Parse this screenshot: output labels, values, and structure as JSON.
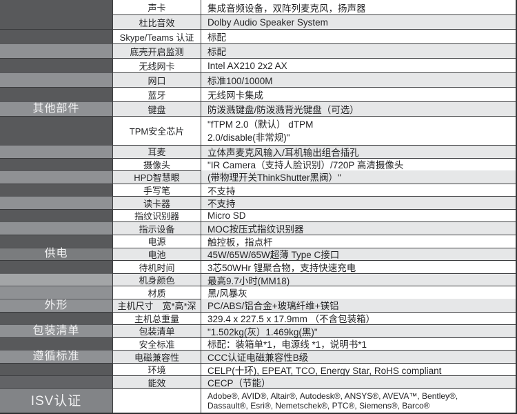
{
  "palette": {
    "left_dark": "#58595b",
    "left_medium": "#8f9194",
    "stripe_gray": "#e6e7e8",
    "stripe_white": "#ffffff",
    "border": "#3c3d3f",
    "category_text": "#f2f2f3",
    "cell_text": "#232325",
    "band_overrides": {
      "17": "#7a7c7e",
      "19": "#a3a5a7",
      "20": "#8f9194",
      "27": "#626366",
      "28": "#828487"
    }
  },
  "categories": [
    {
      "label": "其他部件",
      "row_index": 7,
      "large": false
    },
    {
      "label": "供电",
      "row_index": 17,
      "large": false
    },
    {
      "label": "外形",
      "row_index": 21,
      "large": false
    },
    {
      "label": "包装清单",
      "row_index": 23,
      "large": false
    },
    {
      "label": "遵循标准",
      "row_index": 25,
      "large": false
    },
    {
      "label": "ISV认证",
      "row_index": 28,
      "large": true
    }
  ],
  "rows": [
    {
      "label": "声卡",
      "value": "集成音频设备，双阵列麦克风，扬声器"
    },
    {
      "label": "杜比音效",
      "value": "Dolby Audio Speaker System"
    },
    {
      "label": "Skype/Teams 认证",
      "value": "标配"
    },
    {
      "label": "底壳开启监测",
      "value": "标配"
    },
    {
      "label": "无线网卡",
      "value": "Intel AX210 2x2 AX"
    },
    {
      "label": "网口",
      "value": "标准100/1000M"
    },
    {
      "label": "蓝牙",
      "value": "无线网卡集成"
    },
    {
      "label": "键盘",
      "value": "防泼溅键盘/防泼溅背光键盘（可选）"
    },
    {
      "label": "TPM安全芯片",
      "value": "\"fTPM 2.0（默认） dTPM",
      "value2": "2.0/disable(非常规)\"",
      "tall": true
    },
    {
      "label": "耳麦",
      "value": "立体声麦克风输入/耳机输出组合插孔"
    },
    {
      "label": "摄像头",
      "value": "\"IR Camera（支持人脸识别）/720P 高清摄像头"
    },
    {
      "label": "HPD智慧眼",
      "value": "(带物理开关ThinkShutter黑阀）\"",
      "value_no_top_border": true
    },
    {
      "label": "手写笔",
      "value": "不支持"
    },
    {
      "label": "读卡器",
      "value": "不支持"
    },
    {
      "label": "指纹识别器",
      "value": "Micro SD"
    },
    {
      "label": "指示设备",
      "value": "MOC按压式指纹识别器"
    },
    {
      "label": "电源",
      "value": "触控板，指点杆"
    },
    {
      "label": "电池",
      "value": "45W/65W/65W超薄 Type C接口"
    },
    {
      "label": "待机时间",
      "value": "3芯50WHr 锂聚合物，支持快速充电"
    },
    {
      "label": "机身颜色",
      "value": "最高9.7小时(MM18)"
    },
    {
      "label": "材质",
      "value": "黑/风暴灰"
    },
    {
      "label": "主机尺寸　宽*高*深",
      "value": "PC/ABS/铝合金+玻璃纤维+镁铝",
      "value_no_top_border": true
    },
    {
      "label": "主机总重量",
      "value": "329.4 x 227.5 x 17.9mm （不含包装箱）"
    },
    {
      "label": "包装清单",
      "value": "\"1.502kg(灰）1.469kg(黑)\""
    },
    {
      "label": "安全标准",
      "value": "标配：装箱单*1，电源线 *1，说明书*1"
    },
    {
      "label": "电磁兼容性",
      "value": "CCC认证电磁兼容性B级"
    },
    {
      "label": "环境",
      "value": "CELP(十环), EPEAT, TCO, Energy Star, RoHS compliant"
    },
    {
      "label": "能效",
      "value": "CECP（节能）"
    },
    {
      "label": "",
      "value": "Adobe®, AVID®, Altair®, Autodesk®, ANSYS®, AVEVA™, Bentley®,",
      "value2": "Dassault®, Esri®, Nemetschek®, PTC®, Siemens®, Barco®",
      "bottom": true,
      "small": true
    }
  ]
}
